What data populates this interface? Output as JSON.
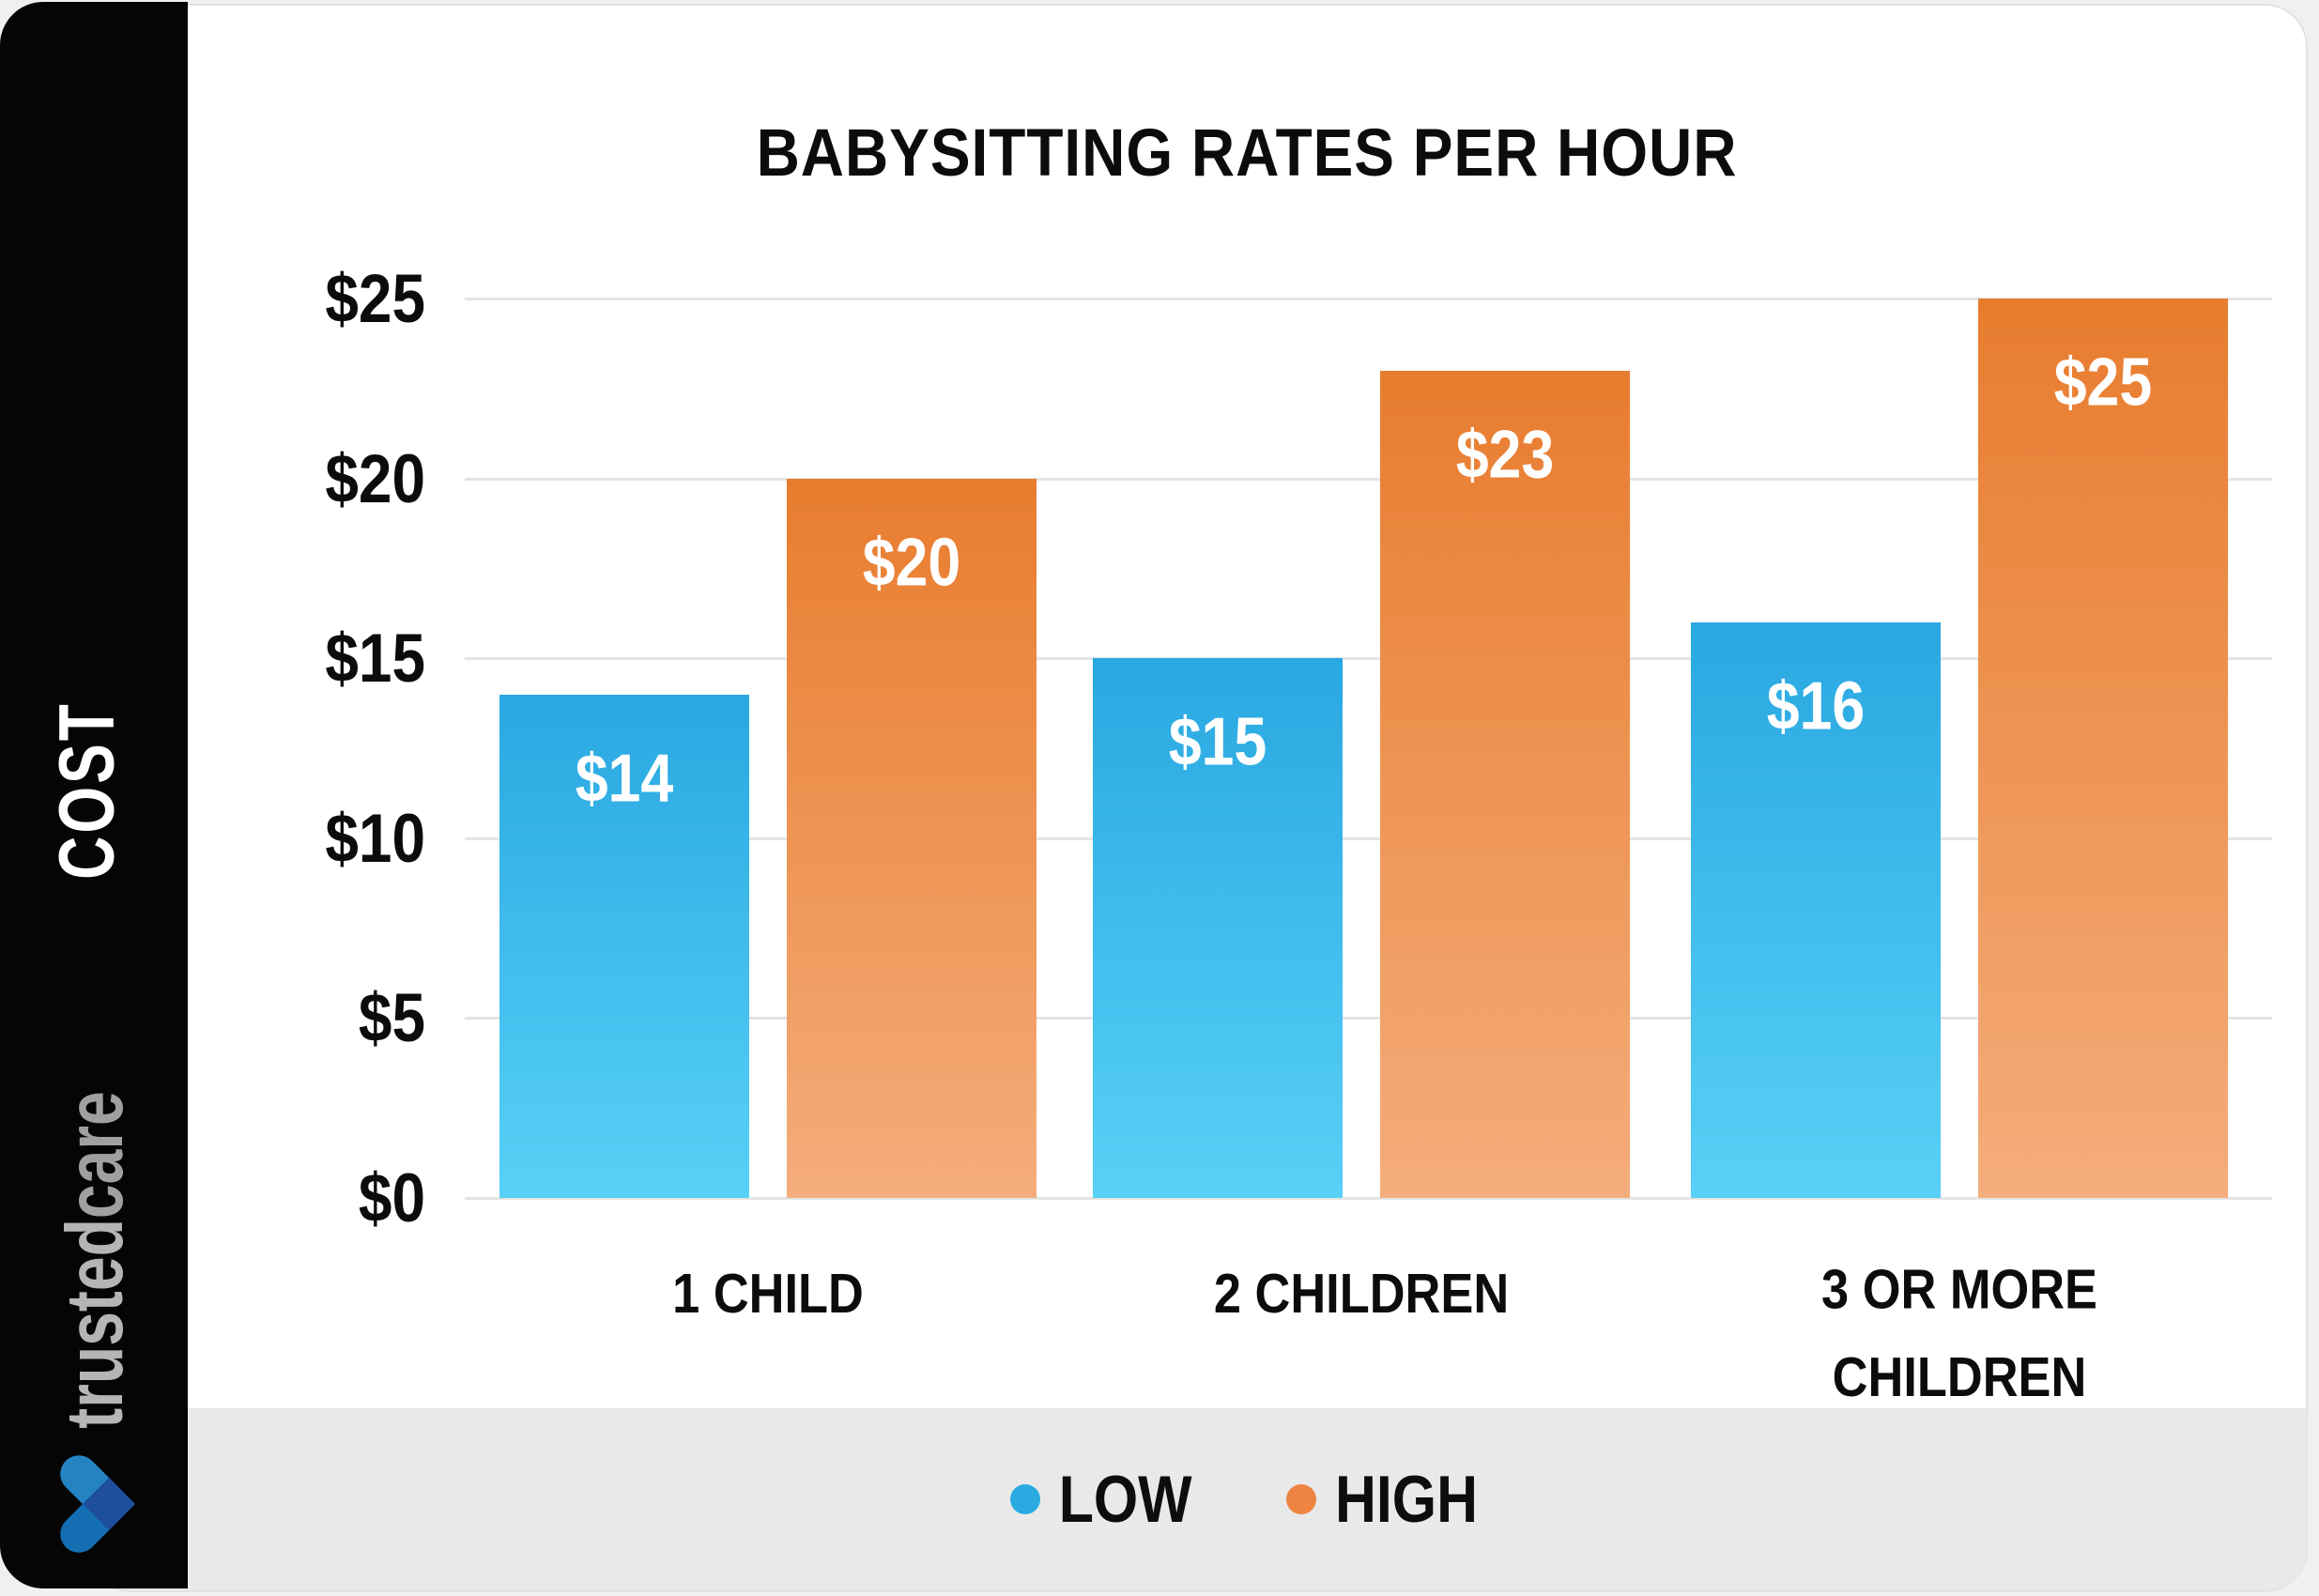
{
  "sidebar": {
    "cost_label": "COST",
    "brand_part1": "trusted",
    "brand_part2": "care",
    "colors": {
      "background": "#050505",
      "brand_part1": "#b5b5b6",
      "brand_part2": "#a0a0a1",
      "logo_upper_arm": "#2484C1",
      "logo_lower_arm": "#146FB2",
      "logo_tip_diamond": "#1D4F9C"
    }
  },
  "chart_data": {
    "type": "bar",
    "title": "BABYSITTING RATES PER HOUR",
    "categories": [
      "1 CHILD",
      "2 CHILDREN",
      "3 OR MORE CHILDREN"
    ],
    "series": [
      {
        "name": "LOW",
        "values": [
          14,
          15,
          16
        ],
        "labels": [
          "$14",
          "$15",
          "$16"
        ],
        "color_top": "#29A8E1",
        "color_bottom": "#58D0F7",
        "legend_dot": "#29ABE2"
      },
      {
        "name": "HIGH",
        "values": [
          20,
          23,
          25
        ],
        "labels": [
          "$20",
          "$23",
          "$25"
        ],
        "color_top": "#E87C2E",
        "color_bottom": "#F4AD7B",
        "legend_dot": "#EF8442"
      }
    ],
    "ylabel": "COST",
    "xlabel": "",
    "ylim": [
      0,
      25
    ],
    "yticks": [
      25,
      20,
      15,
      10,
      5,
      0
    ],
    "ytick_labels": [
      "$25",
      "$20",
      "$15",
      "$10",
      "$5",
      "$0"
    ],
    "grid": true,
    "legend_position": "bottom",
    "value_label_color": "#ffffff",
    "gridline_color": "#e4e4e4",
    "band_color": "#e9e9ea"
  }
}
